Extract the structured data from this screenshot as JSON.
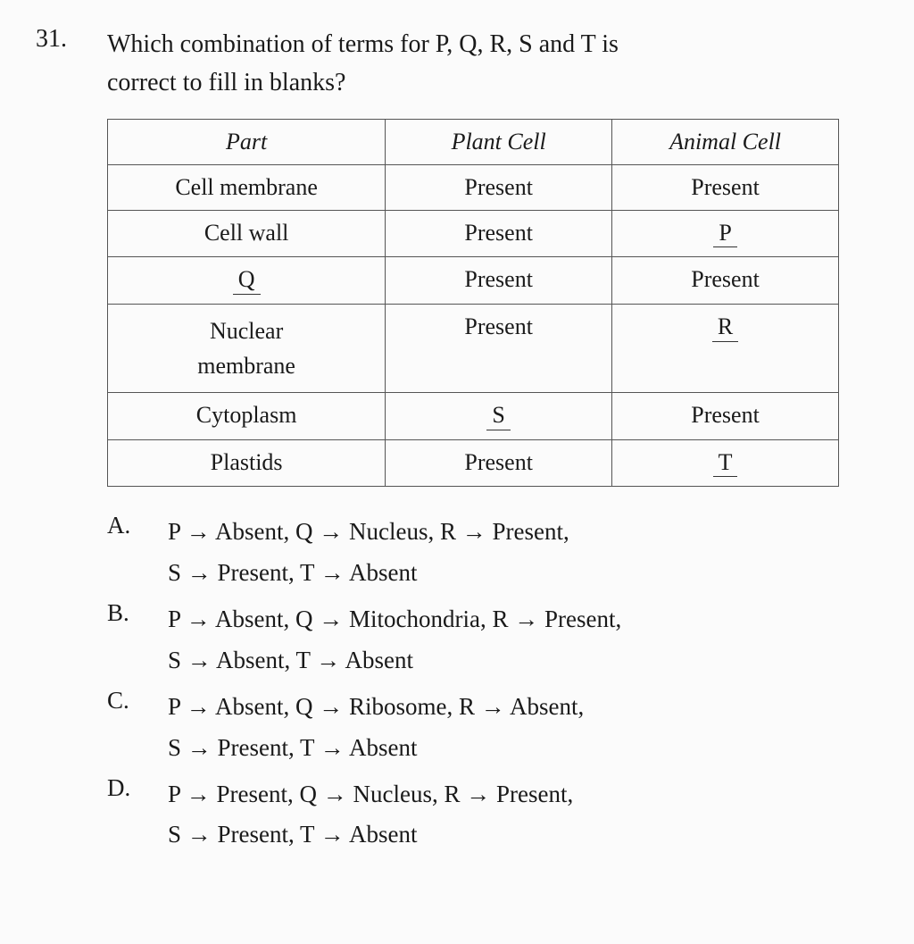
{
  "question": {
    "number": "31.",
    "text_line1": "Which combination of terms for P, Q, R, S and T is",
    "text_line2": "correct to fill in blanks?"
  },
  "table": {
    "headers": {
      "part": "Part",
      "plant": "Plant Cell",
      "animal": "Animal Cell"
    },
    "rows": [
      {
        "part": "Cell membrane",
        "part_blank": false,
        "plant": "Present",
        "plant_blank": false,
        "animal": "Present",
        "animal_blank": false
      },
      {
        "part": "Cell wall",
        "part_blank": false,
        "plant": "Present",
        "plant_blank": false,
        "animal": "P",
        "animal_blank": true
      },
      {
        "part": "Q",
        "part_blank": true,
        "plant": "Present",
        "plant_blank": false,
        "animal": "Present",
        "animal_blank": false
      },
      {
        "part": "Nuclear",
        "part_blank": false,
        "part2": "membrane",
        "plant": "Present",
        "plant_blank": false,
        "animal": "R",
        "animal_blank": true
      },
      {
        "part": "Cytoplasm",
        "part_blank": false,
        "plant": "S",
        "plant_blank": true,
        "animal": "Present",
        "animal_blank": false
      },
      {
        "part": "Plastids",
        "part_blank": false,
        "plant": "Present",
        "plant_blank": false,
        "animal": "T",
        "animal_blank": true
      }
    ]
  },
  "options": [
    {
      "letter": "A.",
      "line1": "P → Absent, Q → Nucleus, R → Present,",
      "line2": "S → Present, T → Absent"
    },
    {
      "letter": "B.",
      "line1": "P → Absent, Q → Mitochondria, R → Present,",
      "line2": "S → Absent, T → Absent"
    },
    {
      "letter": "C.",
      "line1": "P → Absent, Q → Ribosome, R → Absent,",
      "line2": "S → Present, T → Absent"
    },
    {
      "letter": "D.",
      "line1": "P → Present, Q → Nucleus, R → Present,",
      "line2": "S → Present, T → Absent"
    }
  ]
}
